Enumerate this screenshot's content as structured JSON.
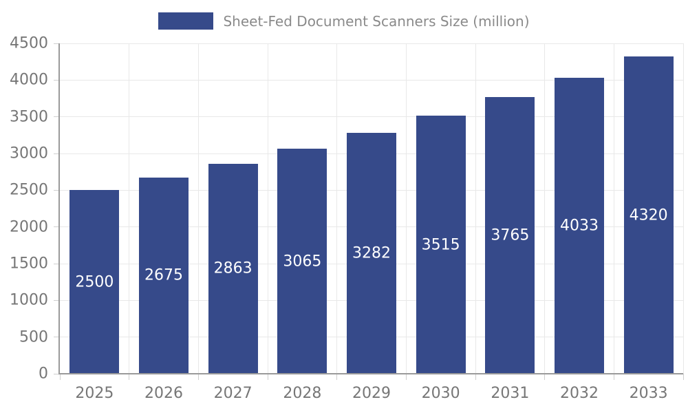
{
  "legend": {
    "label": "Sheet-Fed Document Scanners Size (million)"
  },
  "chart_data": {
    "type": "bar",
    "title": "Sheet-Fed Document Scanners Size (million)",
    "series_name": "Sheet-Fed Document Scanners Size (million)",
    "categories": [
      "2025",
      "2026",
      "2027",
      "2028",
      "2029",
      "2030",
      "2031",
      "2032",
      "2033"
    ],
    "values": [
      2500,
      2675,
      2863,
      3065,
      3282,
      3515,
      3765,
      4033,
      4320
    ],
    "value_labels": [
      "2500",
      "2675",
      "2863",
      "3065",
      "3282",
      "3515",
      "3765",
      "4033",
      "4320"
    ],
    "xlabel": "",
    "ylabel": "",
    "ylim": [
      0,
      4500
    ],
    "y_ticks": [
      0,
      500,
      1000,
      1500,
      2000,
      2500,
      3000,
      3500,
      4000,
      4500
    ],
    "grid": true,
    "legend_position": "top",
    "colors": {
      "bar": "#364A8A",
      "value_label": "#FFFFFF",
      "axis_text": "#767676",
      "legend_text": "#8A8A8A",
      "grid": "#E8E8E8",
      "axis_line": "#9A9A9A",
      "tick": "#CFCFCF"
    }
  }
}
